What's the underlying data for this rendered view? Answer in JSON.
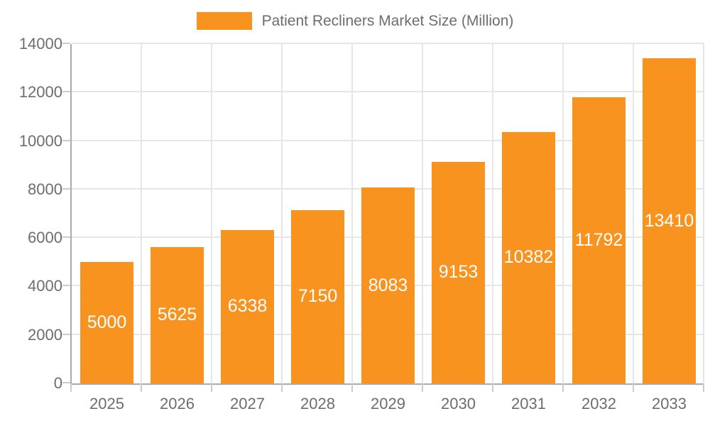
{
  "chart_data": {
    "type": "bar",
    "title": "Patient Recliners Market Size (Million)",
    "categories": [
      "2025",
      "2026",
      "2027",
      "2028",
      "2029",
      "2030",
      "2031",
      "2032",
      "2033"
    ],
    "values": [
      5000,
      5625,
      6338,
      7150,
      8083,
      9153,
      10382,
      11792,
      13410
    ],
    "series_name": "Patient Recliners Market Size (Million)",
    "xlabel": "",
    "ylabel": "",
    "ylim": [
      0,
      14000
    ],
    "y_ticks": [
      0,
      2000,
      4000,
      6000,
      8000,
      10000,
      12000,
      14000
    ],
    "grid": true,
    "legend_position": "top",
    "bar_color": "#f7931e",
    "bar_label_color": "#ffffff",
    "axis_text_color": "#6d6d6d",
    "grid_color": "#e6e6e6",
    "axis_line_color": "#ababab"
  }
}
